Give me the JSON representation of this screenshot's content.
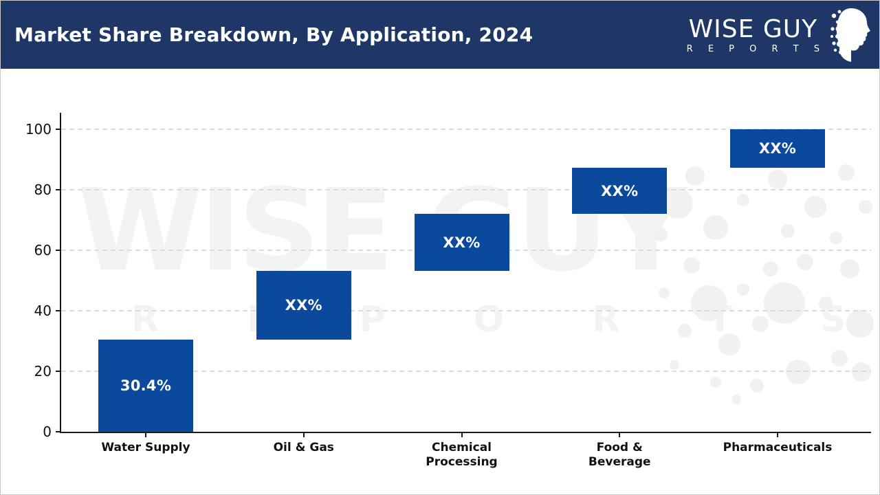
{
  "header": {
    "title": "Market Share Breakdown, By Application, 2024",
    "bg_color": "#1f3767",
    "logo": {
      "brand_line1": "WISE GUY",
      "brand_line2": "R E P O R T S",
      "icon": "dotted-head-profile-icon"
    }
  },
  "watermark": {
    "brand_line1": "WISE GUY",
    "brand_line2": "R E P O R T S"
  },
  "chart_data": {
    "type": "bar",
    "variant": "waterfall",
    "title": "Market Share Breakdown, By Application, 2024",
    "xlabel": "",
    "ylabel": "",
    "categories": [
      "Water Supply",
      "Oil & Gas",
      "Chemical Processing",
      "Food & Beverage",
      "Pharmaceuticals"
    ],
    "segments": [
      {
        "label": "Water Supply",
        "start": 0,
        "end": 30.4,
        "display": "30.4%"
      },
      {
        "label": "Oil & Gas",
        "start": 30.4,
        "end": 53.2,
        "display": "XX%"
      },
      {
        "label": "Chemical Processing",
        "start": 53.2,
        "end": 72.0,
        "display": "XX%"
      },
      {
        "label": "Food & Beverage",
        "start": 72.0,
        "end": 87.3,
        "display": "XX%"
      },
      {
        "label": "Pharmaceuticals",
        "start": 87.3,
        "end": 100.1,
        "display": "XX%"
      }
    ],
    "y_ticks": [
      0,
      20,
      40,
      60,
      80,
      100
    ],
    "ylim": [
      0,
      105
    ],
    "grid": {
      "horizontal": true,
      "style": "dashed",
      "color": "#dcdcdc"
    },
    "legend": "none",
    "bar_color": "#0a499c",
    "bar_label_color": "#ffffff"
  }
}
